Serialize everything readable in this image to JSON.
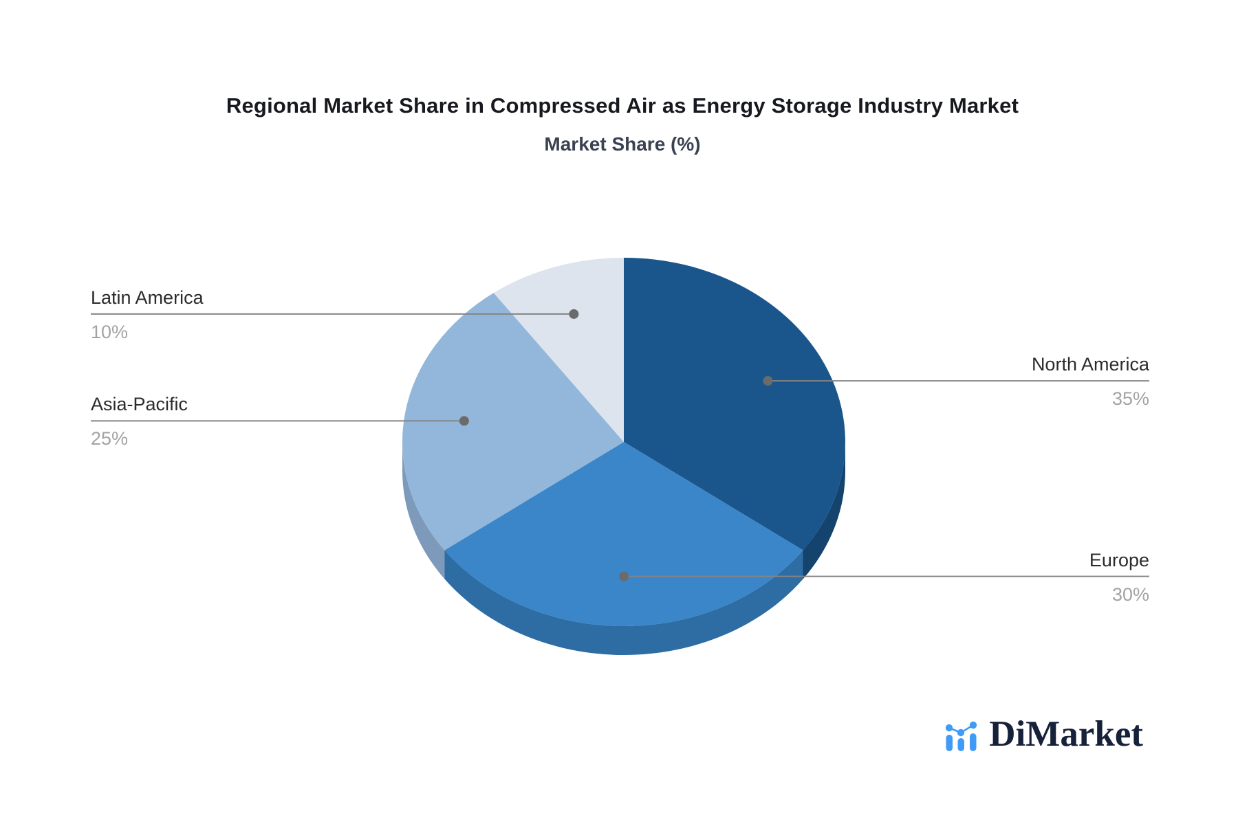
{
  "chart_data": {
    "type": "pie",
    "style": "3d",
    "title": "Regional Market Share in Compressed Air as Energy Storage Industry Market",
    "subtitle": "Market Share (%)",
    "unit": "%",
    "start_angle_deg": 0,
    "direction": "clockwise",
    "legend": "none",
    "label_position": "outside-leader-lines",
    "slices": [
      {
        "name": "North America",
        "value": 35,
        "pct_label": "35%",
        "color": "#1a568c",
        "side_color": "#14436d",
        "label_side": "right"
      },
      {
        "name": "Europe",
        "value": 30,
        "pct_label": "30%",
        "color": "#3a86c8",
        "side_color": "#2e6ca4",
        "label_side": "right"
      },
      {
        "name": "Asia-Pacific",
        "value": 25,
        "pct_label": "25%",
        "color": "#93b7db",
        "side_color": "#7e9aba",
        "label_side": "left"
      },
      {
        "name": "Latin America",
        "value": 10,
        "pct_label": "10%",
        "color": "#dde4ed",
        "side_color": "#b9c5d6",
        "label_side": "left"
      }
    ],
    "leader_line_color": "#848484",
    "leader_dot_color": "#6b6b6b",
    "name_label_color": "#2b2b2b",
    "pct_label_color": "#a3a3a3"
  },
  "branding": {
    "logo_text": "DiMarket",
    "logo_icon": "bar-line-chart-icon",
    "logo_icon_color": "#3f9bf7",
    "logo_text_color": "#16213a"
  }
}
